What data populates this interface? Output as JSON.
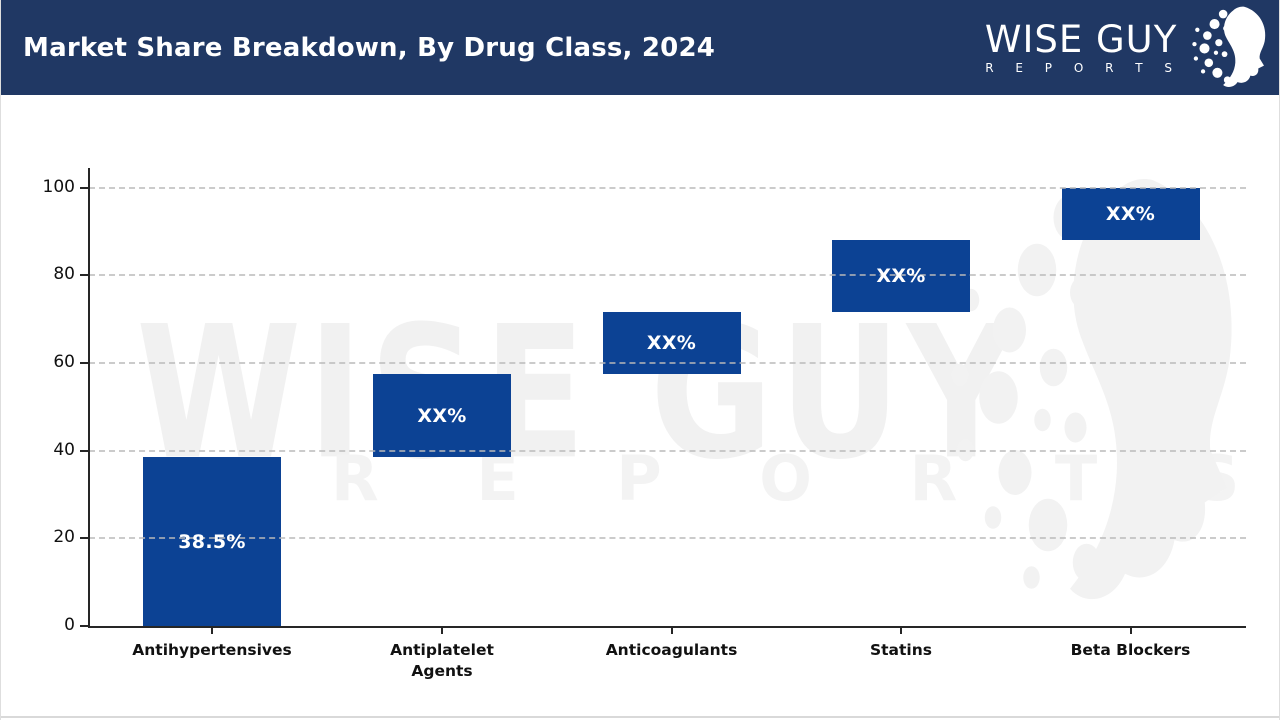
{
  "header": {
    "title": "Market Share Breakdown, By Drug Class, 2024",
    "logo": {
      "line1": "WISE GUY",
      "line2": "R E P O R T S"
    }
  },
  "watermark": {
    "line1": "WISE GUY",
    "line2": "R E P O R T S"
  },
  "colors": {
    "header_bg": "#203864",
    "bar": "#0c4294",
    "grid": "#d8d8d8",
    "axis": "#262626",
    "tick_text": "#111111",
    "bar_label_text": "#ffffff",
    "watermark": "#f1f1f1"
  },
  "chart_data": {
    "type": "bar",
    "subtype": "waterfall",
    "title": "Market Share Breakdown, By Drug Class, 2024",
    "categories": [
      "Antihypertensives",
      "Antiplatelet\nAgents",
      "Anticoagulants",
      "Statins",
      "Beta Blockers"
    ],
    "segments": [
      {
        "category": "Antihypertensives",
        "start": 0,
        "end": 38.5,
        "label": "38.5%"
      },
      {
        "category": "Antiplatelet Agents",
        "start": 38.5,
        "end": 57.5,
        "label": "XX%"
      },
      {
        "category": "Anticoagulants",
        "start": 57.5,
        "end": 71.5,
        "label": "XX%"
      },
      {
        "category": "Statins",
        "start": 71.5,
        "end": 88,
        "label": "XX%"
      },
      {
        "category": "Beta Blockers",
        "start": 88,
        "end": 100,
        "label": "XX%"
      }
    ],
    "y_ticks": [
      0,
      20,
      40,
      60,
      80,
      100
    ],
    "ylim": [
      0,
      104
    ],
    "xlabel": "",
    "ylabel": "",
    "grid": "horizontal-dashed",
    "legend": "none"
  }
}
